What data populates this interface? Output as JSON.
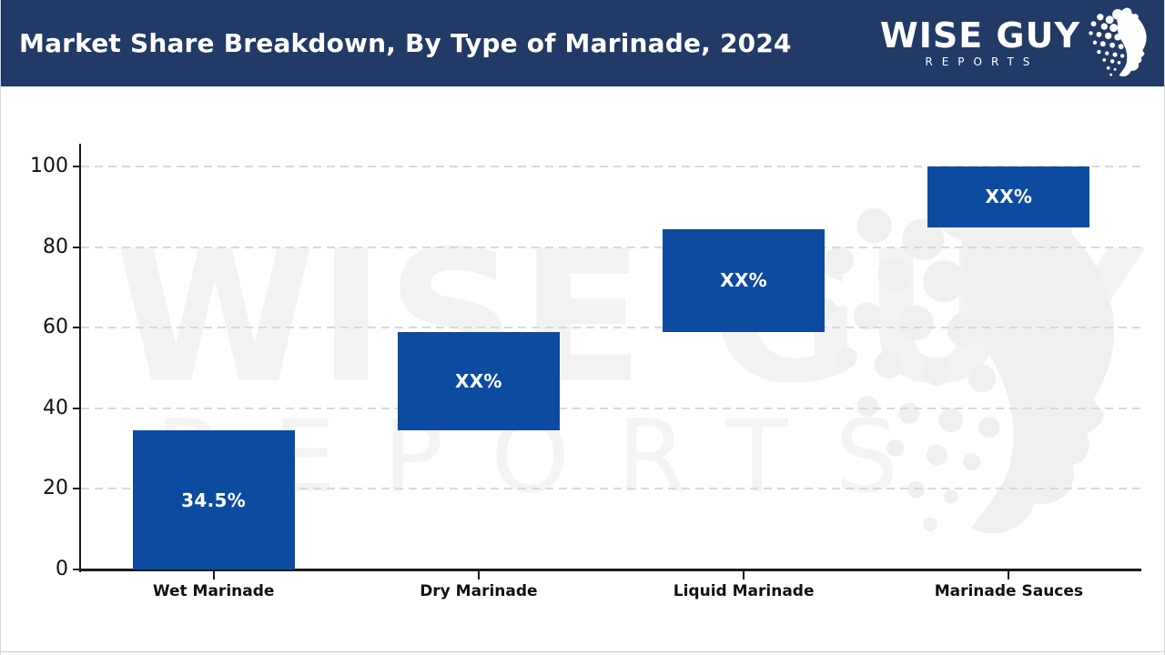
{
  "chart_data": {
    "type": "bar",
    "subtype": "floating_segment_waterfall",
    "title": "Market Share Breakdown, By Type of Marinade, 2024",
    "categories": [
      "Wet Marinade",
      "Dry Marinade",
      "Liquid Marinade",
      "Marinade Sauces"
    ],
    "bars": [
      {
        "category": "Wet Marinade",
        "from": 0,
        "to": 34.5,
        "label": "34.5%"
      },
      {
        "category": "Dry Marinade",
        "from": 34.5,
        "to": 59,
        "label": "XX%"
      },
      {
        "category": "Liquid Marinade",
        "from": 59,
        "to": 84.5,
        "label": "XX%"
      },
      {
        "category": "Marinade Sauces",
        "from": 85,
        "to": 100,
        "label": "XX%"
      }
    ],
    "xlabel": "",
    "ylabel": "",
    "ylim": [
      0,
      100
    ],
    "yticks": [
      0,
      20,
      40,
      60,
      80,
      100
    ],
    "grid": "horizontal-dashed",
    "legend": "none",
    "bar_color": "#0d4ba1",
    "bar_label_color": "#ffffff"
  },
  "brand": {
    "logo_line1": "WISE GUY",
    "logo_line2": "REPORTS",
    "watermark_line1": "WISE GUY",
    "watermark_line2": "REPORTS"
  },
  "colors": {
    "header_bg": "#213a66",
    "bar": "#0d4ba1",
    "grid": "#d9d9d9",
    "axis": "#1a1a1a",
    "tick_label": "#111111",
    "watermark": "#f2f2f2"
  }
}
